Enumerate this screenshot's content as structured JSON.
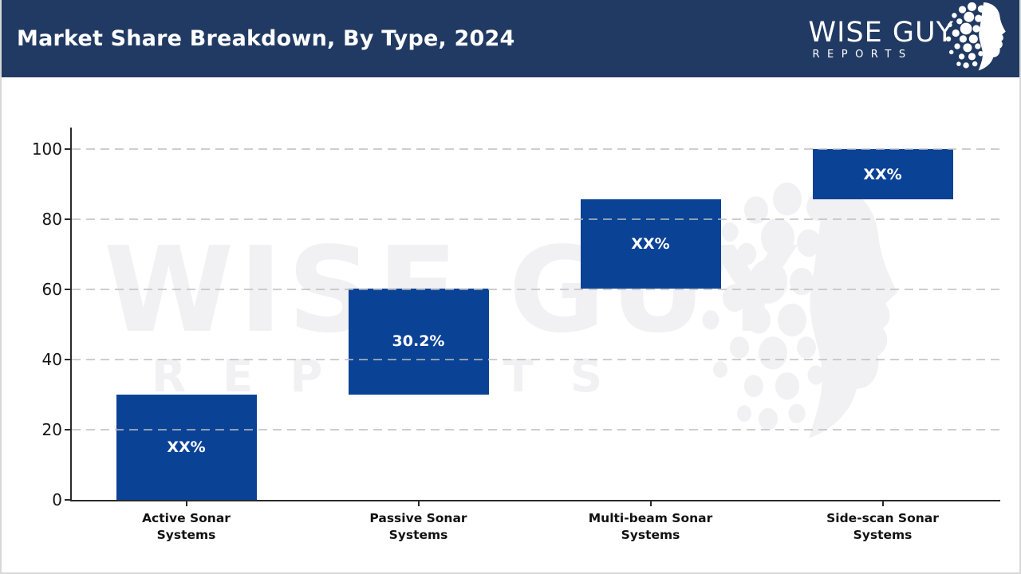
{
  "header": {
    "title": "Market Share Breakdown, By Type, 2024",
    "logo": {
      "name": "WISE GUY",
      "sub": "REPORTS"
    }
  },
  "watermark": {
    "title": "WISE GUY",
    "sub": "REPORTS"
  },
  "chart_data": {
    "type": "bar",
    "variant": "waterfall",
    "title": "Market Share Breakdown, By Type, 2024",
    "categories": [
      {
        "name": "Active Sonar Systems",
        "lines": [
          "Active Sonar",
          "Systems"
        ]
      },
      {
        "name": "Passive Sonar Systems",
        "lines": [
          "Passive Sonar",
          "Systems"
        ]
      },
      {
        "name": "Multi-beam Sonar Systems",
        "lines": [
          "Multi-beam Sonar",
          "Systems"
        ]
      },
      {
        "name": "Side-scan Sonar Systems",
        "lines": [
          "Side-scan Sonar",
          "Systems"
        ]
      }
    ],
    "bars": [
      {
        "category": "Active Sonar Systems",
        "start": 0,
        "end": 30.1,
        "value": 30.1,
        "label": "XX%"
      },
      {
        "category": "Passive Sonar Systems",
        "start": 30.1,
        "end": 60.3,
        "value": 30.2,
        "label": "30.2%"
      },
      {
        "category": "Multi-beam Sonar Systems",
        "start": 60.3,
        "end": 85.6,
        "value": 25.3,
        "label": "XX%"
      },
      {
        "category": "Side-scan Sonar Systems",
        "start": 85.6,
        "end": 100,
        "value": 14.4,
        "label": "XX%"
      }
    ],
    "ylim": [
      0,
      100
    ],
    "yticks": [
      0,
      20,
      40,
      60,
      80,
      100
    ],
    "xlabel": "",
    "ylabel": "",
    "grid": "dashed-horizontal",
    "legend": "none",
    "bar_color": "#0a4296",
    "bar_label_color": "#ffffff"
  },
  "colors": {
    "header_bg": "#213a63",
    "bar_blue": "#0a4296",
    "axis": "#2a2a2a",
    "grid": "#cccccc",
    "watermark": "#f1f1f3"
  }
}
